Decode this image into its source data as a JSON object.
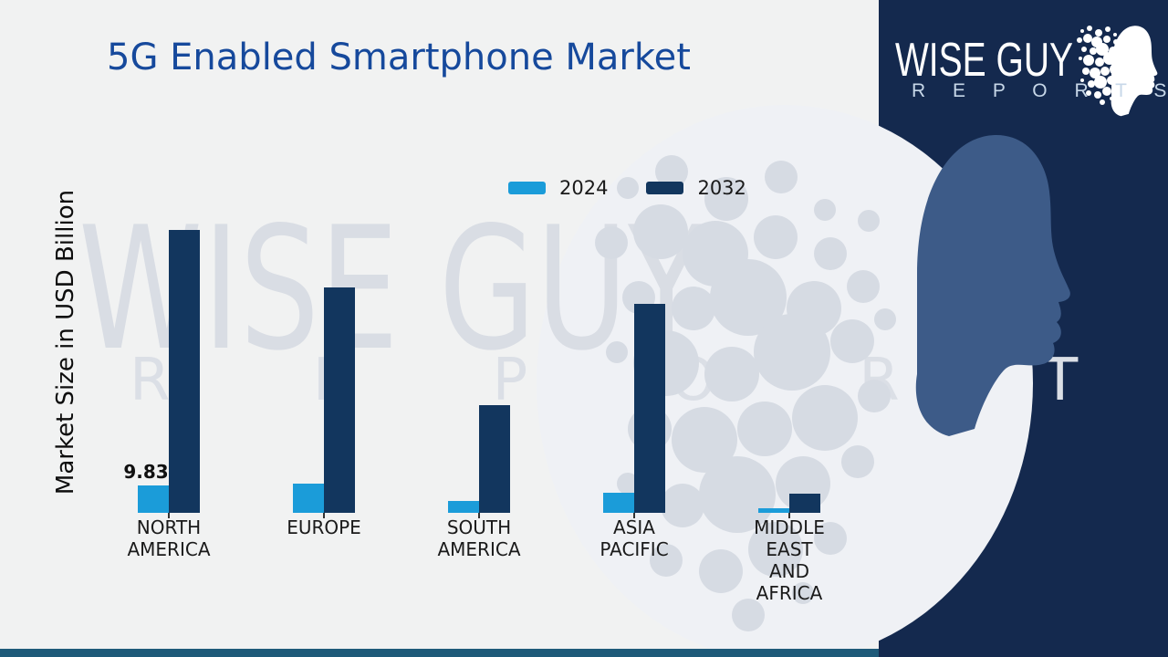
{
  "title": {
    "text": "5G Enabled Smartphone Market"
  },
  "y_axis_label": "Market Size in USD Billion",
  "legend": [
    {
      "label": "2024",
      "color": "#1b9cd9"
    },
    {
      "label": "2032",
      "color": "#12365e"
    }
  ],
  "watermark": {
    "line1": "WISE GUY",
    "line2": "R E P O R T S"
  },
  "logo": {
    "line1": "WISE GUY",
    "line2": "R E P O R T S"
  },
  "colors": {
    "accent_blue": "#1b9cd9",
    "navy_bar": "#12365e",
    "panel_navy": "#14294e",
    "teal_bottom_bar": "#1e5a79",
    "title_blue": "#16499c",
    "watermark_gray": "#d9dde4",
    "face_blue": "#3d5b88",
    "background": "#f1f2f2"
  },
  "chart_data": {
    "type": "bar",
    "title": "5G Enabled Smartphone Market",
    "xlabel": "",
    "ylabel": "Market Size in USD Billion",
    "categories": [
      "NORTH AMERICA",
      "EUROPE",
      "SOUTH AMERICA",
      "ASIA PACIFIC",
      "MIDDLE EAST AND AFRICA"
    ],
    "category_lines": [
      [
        "NORTH",
        "AMERICA"
      ],
      [
        "EUROPE"
      ],
      [
        "SOUTH",
        "AMERICA"
      ],
      [
        "ASIA",
        "PACIFIC"
      ],
      [
        "MIDDLE",
        "EAST",
        "AND",
        "AFRICA"
      ]
    ],
    "series": [
      {
        "name": "2024",
        "color": "#1b9cd9",
        "values": [
          9.83,
          10.5,
          4.3,
          7.2,
          1.6
        ]
      },
      {
        "name": "2032",
        "color": "#12365e",
        "values": [
          101.6,
          80.9,
          38.7,
          75.0,
          6.9
        ]
      }
    ],
    "bar_labels": [
      {
        "category_index": 0,
        "series_index": 0,
        "text": "9.83"
      }
    ],
    "ylim": [
      0,
      110
    ],
    "grid": false,
    "axis_lines": false,
    "legend_position": "top-center"
  }
}
